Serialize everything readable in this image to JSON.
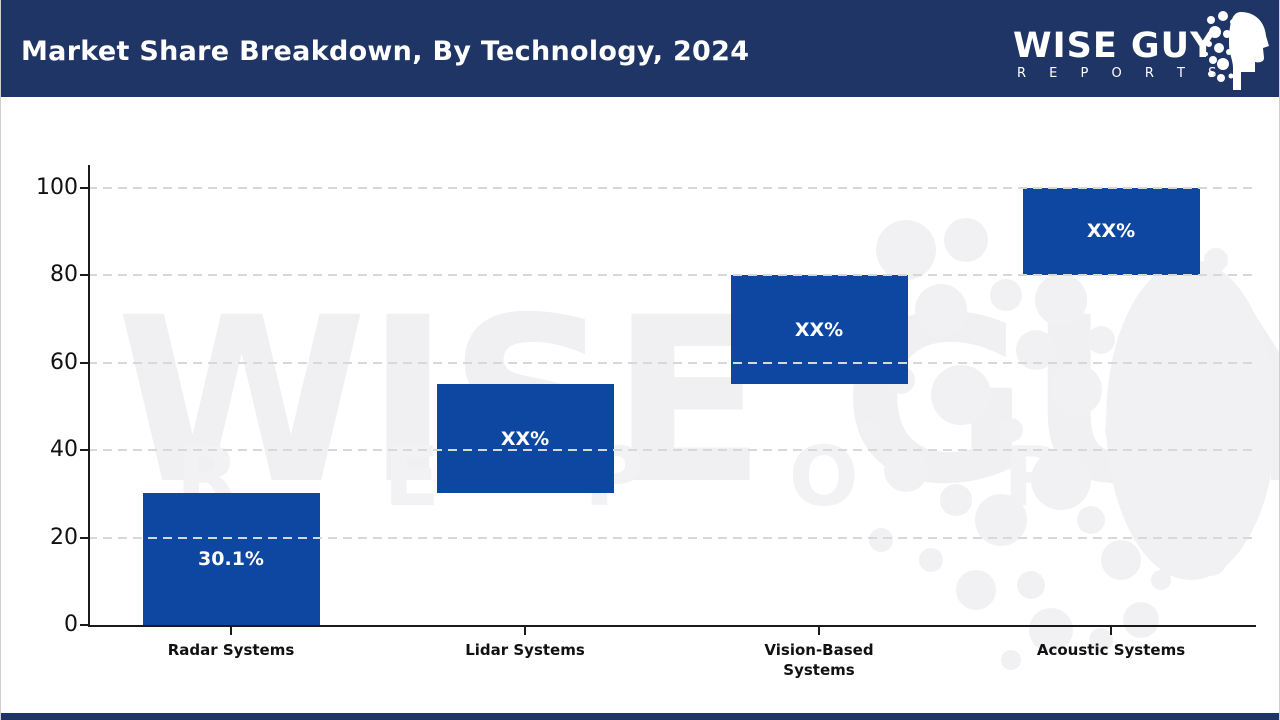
{
  "header": {
    "title": "Market Share Breakdown, By Technology, 2024",
    "logo": {
      "line1": "WISE GUY",
      "line2": "R E P O R T S"
    }
  },
  "watermark": {
    "line1": "WISE GUY",
    "line2": "R E P O R T S"
  },
  "colors": {
    "header_bg": "#1f3565",
    "footer_bg": "#1f3565",
    "bar": "#0d47a1",
    "grid": "#d8d8d8",
    "axis": "#1a1a1a",
    "value_label": "#ffffff",
    "watermark": "#f0f0f2"
  },
  "chart_data": {
    "type": "bar",
    "subtype": "waterfall",
    "title": "Market Share Breakdown, By Technology, 2024",
    "categories": [
      "Radar Systems",
      "Lidar Systems",
      "Vision-Based Systems",
      "Acoustic Systems"
    ],
    "series": [
      {
        "name": "Market Share",
        "segments": [
          {
            "category": "Radar Systems",
            "start": 0,
            "end": 30.1,
            "label": "30.1%"
          },
          {
            "category": "Lidar Systems",
            "start": 30.1,
            "end": 55,
            "label": "XX%"
          },
          {
            "category": "Vision-Based Systems",
            "start": 55,
            "end": 80,
            "label": "XX%"
          },
          {
            "category": "Acoustic Systems",
            "start": 80,
            "end": 100,
            "label": "XX%"
          }
        ]
      }
    ],
    "xlabel": "",
    "ylabel": "",
    "ylim": [
      0,
      100
    ],
    "yticks": [
      0,
      20,
      40,
      60,
      80,
      100
    ],
    "grid": "horizontal-dashed",
    "legend": "none"
  }
}
